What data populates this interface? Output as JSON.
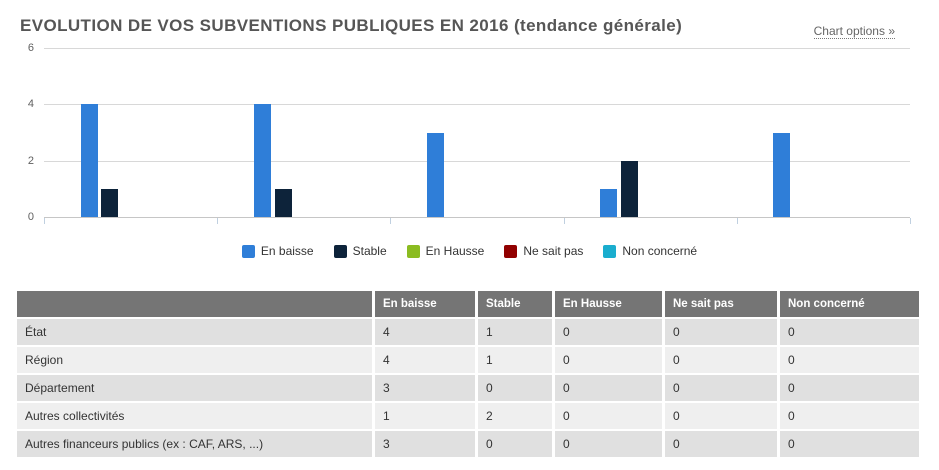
{
  "header": {
    "title": "EVOLUTION DE VOS SUBVENTIONS PUBLIQUES EN 2016 (tendance générale)",
    "chart_options_label": "Chart options »"
  },
  "chart_data": {
    "type": "bar",
    "title": "EVOLUTION DE VOS SUBVENTIONS PUBLIQUES EN 2016 (tendance générale)",
    "categories": [
      "État",
      "Région",
      "Département",
      "Autres collectivités",
      "Autres financeurs publics (ex : CAF, ARS, ...)"
    ],
    "series": [
      {
        "name": "En baisse",
        "color": "#2f7ed8",
        "values": [
          4,
          4,
          3,
          1,
          3
        ]
      },
      {
        "name": "Stable",
        "color": "#0d233a",
        "values": [
          1,
          1,
          0,
          2,
          0
        ]
      },
      {
        "name": "En Hausse",
        "color": "#8bbc21",
        "values": [
          0,
          0,
          0,
          0,
          0
        ]
      },
      {
        "name": "Ne sait pas",
        "color": "#910000",
        "values": [
          0,
          0,
          0,
          0,
          0
        ]
      },
      {
        "name": "Non concerné",
        "color": "#1aadce",
        "values": [
          0,
          0,
          0,
          0,
          0
        ]
      }
    ],
    "xlabel": "",
    "ylabel": "",
    "ylim": [
      0,
      6
    ],
    "yticks": [
      0,
      2,
      4,
      6
    ],
    "grid": true,
    "x_axis_labels_visible": false,
    "legend_position": "bottom",
    "axis_tick_color": "#c0d0e0",
    "gridline_color": "#d8d8d8"
  },
  "table": {
    "columns": [
      "",
      "En baisse",
      "Stable",
      "En Hausse",
      "Ne sait pas",
      "Non concerné"
    ],
    "rows": [
      {
        "label": "État",
        "values": [
          "4",
          "1",
          "0",
          "0",
          "0"
        ]
      },
      {
        "label": "Région",
        "values": [
          "4",
          "1",
          "0",
          "0",
          "0"
        ]
      },
      {
        "label": "Département",
        "values": [
          "3",
          "0",
          "0",
          "0",
          "0"
        ]
      },
      {
        "label": "Autres collectivités",
        "values": [
          "1",
          "2",
          "0",
          "0",
          "0"
        ]
      },
      {
        "label": "Autres financeurs publics (ex : CAF, ARS, ...)",
        "values": [
          "3",
          "0",
          "0",
          "0",
          "0"
        ]
      }
    ]
  }
}
